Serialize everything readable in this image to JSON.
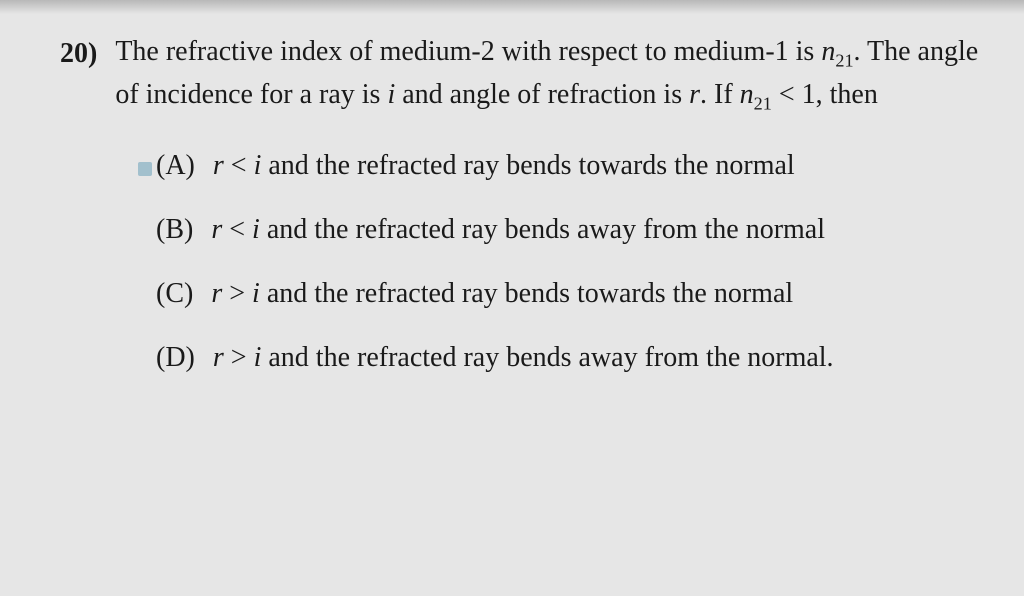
{
  "question": {
    "number": "20)",
    "stem_html": "The refractive index of medium-2 with respect to medium-1 is <span class=\"math-i\">n</span><sub>21</sub>. The angle of incidence for a ray is <span class=\"math-i\">i</span> and angle of refraction is <span class=\"math-i\">r</span>. If <span class=\"math-i\">n</span><sub>21</sub> &lt; 1, then"
  },
  "options": [
    {
      "label": "(A)",
      "text_html": "<span class=\"math-i\">r</span> &lt; <span class=\"math-i\">i</span> and the refracted ray bends towards the normal",
      "highlight": true
    },
    {
      "label": "(B)",
      "text_html": "<span class=\"math-i\">r</span> &lt; <span class=\"math-i\">i</span> and the refracted ray bends away from the normal",
      "highlight": false
    },
    {
      "label": "(C)",
      "text_html": "<span class=\"math-i\">r</span> &gt; <span class=\"math-i\">i</span> and the refracted ray bends towards the normal",
      "highlight": false
    },
    {
      "label": "(D)",
      "text_html": "<span class=\"math-i\">r</span> &gt; <span class=\"math-i\">i</span> and the refracted ray bends away from the normal.",
      "highlight": false
    }
  ],
  "style": {
    "background": "#e6e6e6",
    "text_color": "#1a1a1a",
    "font_size_pt": 21,
    "highlight_color": "#6aa0b8"
  }
}
